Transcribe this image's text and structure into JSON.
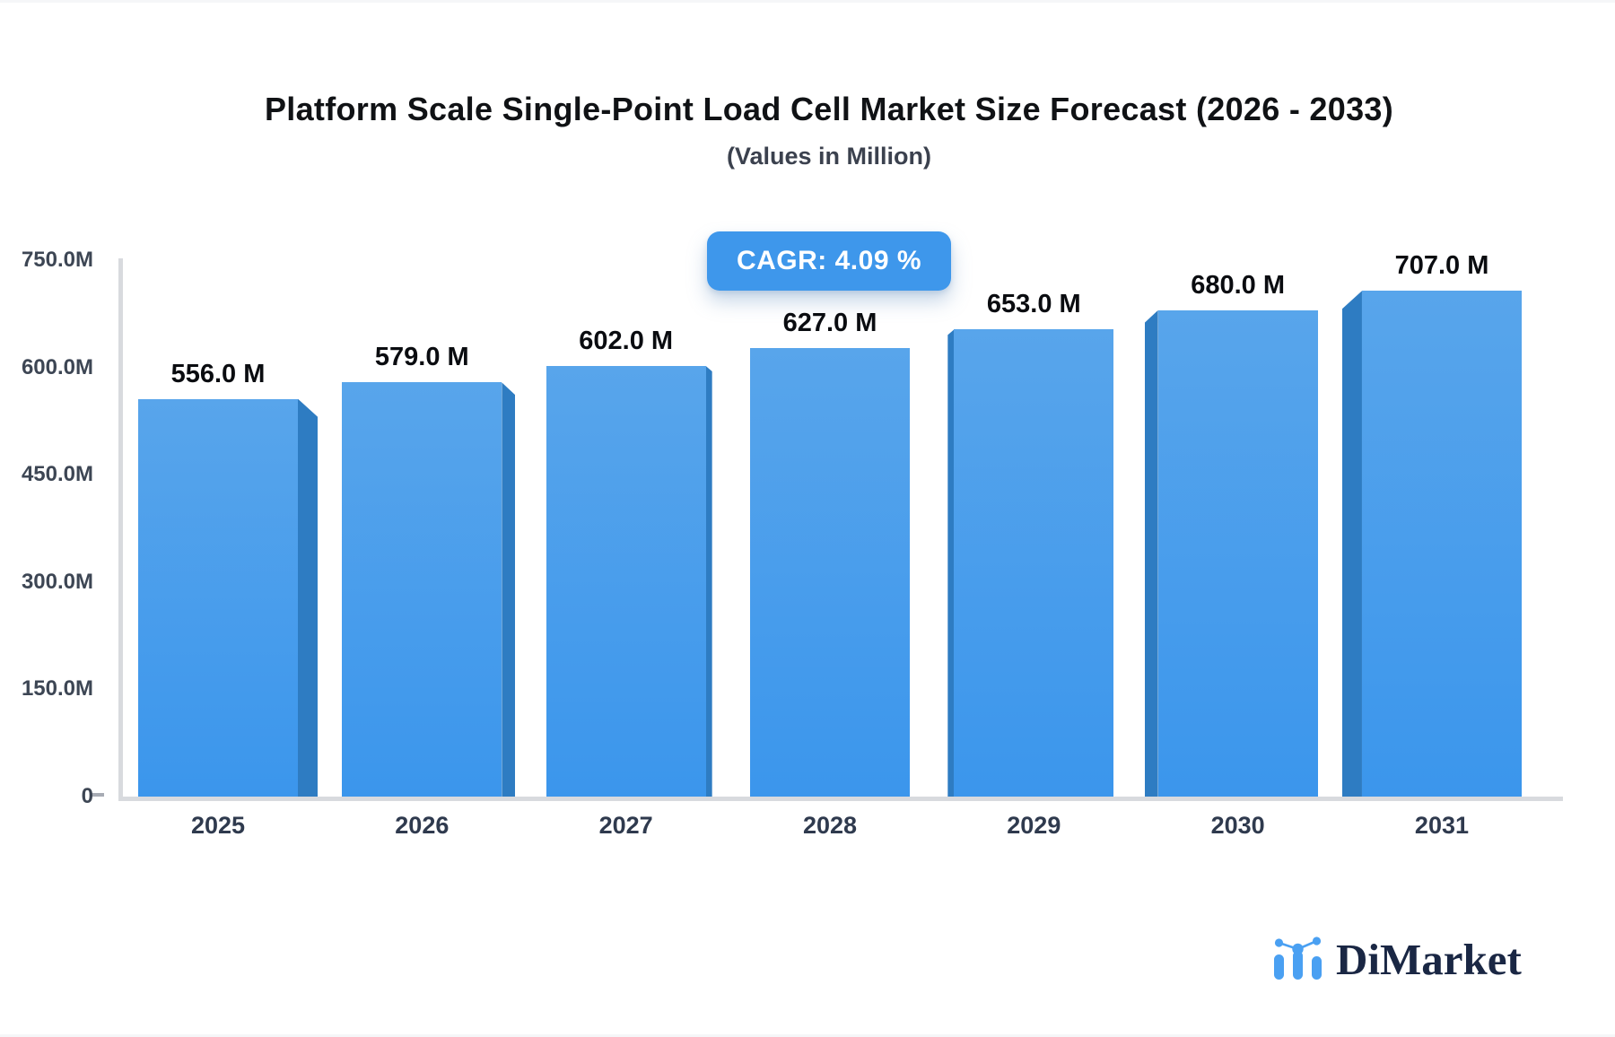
{
  "brand": {
    "name": "DiMarket",
    "icon": "mini-bar-line-chart-icon",
    "accent_blue": "#4aa0f2",
    "navy": "#1a2744"
  },
  "chart_data": {
    "type": "bar",
    "title": "Platform Scale Single-Point Load Cell Market Size Forecast (2026 - 2033)",
    "subtitle": "(Values in Million)",
    "cagr_label": "CAGR: 4.09 %",
    "categories": [
      "2025",
      "2026",
      "2027",
      "2028",
      "2029",
      "2030",
      "2031"
    ],
    "values": [
      556,
      579,
      602,
      627,
      653,
      680,
      707
    ],
    "value_labels": [
      "556.0 M",
      "579.0 M",
      "602.0 M",
      "627.0 M",
      "653.0 M",
      "680.0 M",
      "707.0 M"
    ],
    "y_ticks": [
      "750.0M",
      "600.0M",
      "450.0M",
      "300.0M",
      "150.0M",
      "0"
    ],
    "ylim": [
      0,
      750
    ],
    "unit": "Million",
    "grid": false,
    "legend": "none",
    "colors": {
      "bar_top": "#58a5eb",
      "bar_bottom": "#3b96ec",
      "bar_side": "#2e7cc2",
      "badge": "#3e97eb",
      "axis": "#d8dade"
    }
  }
}
